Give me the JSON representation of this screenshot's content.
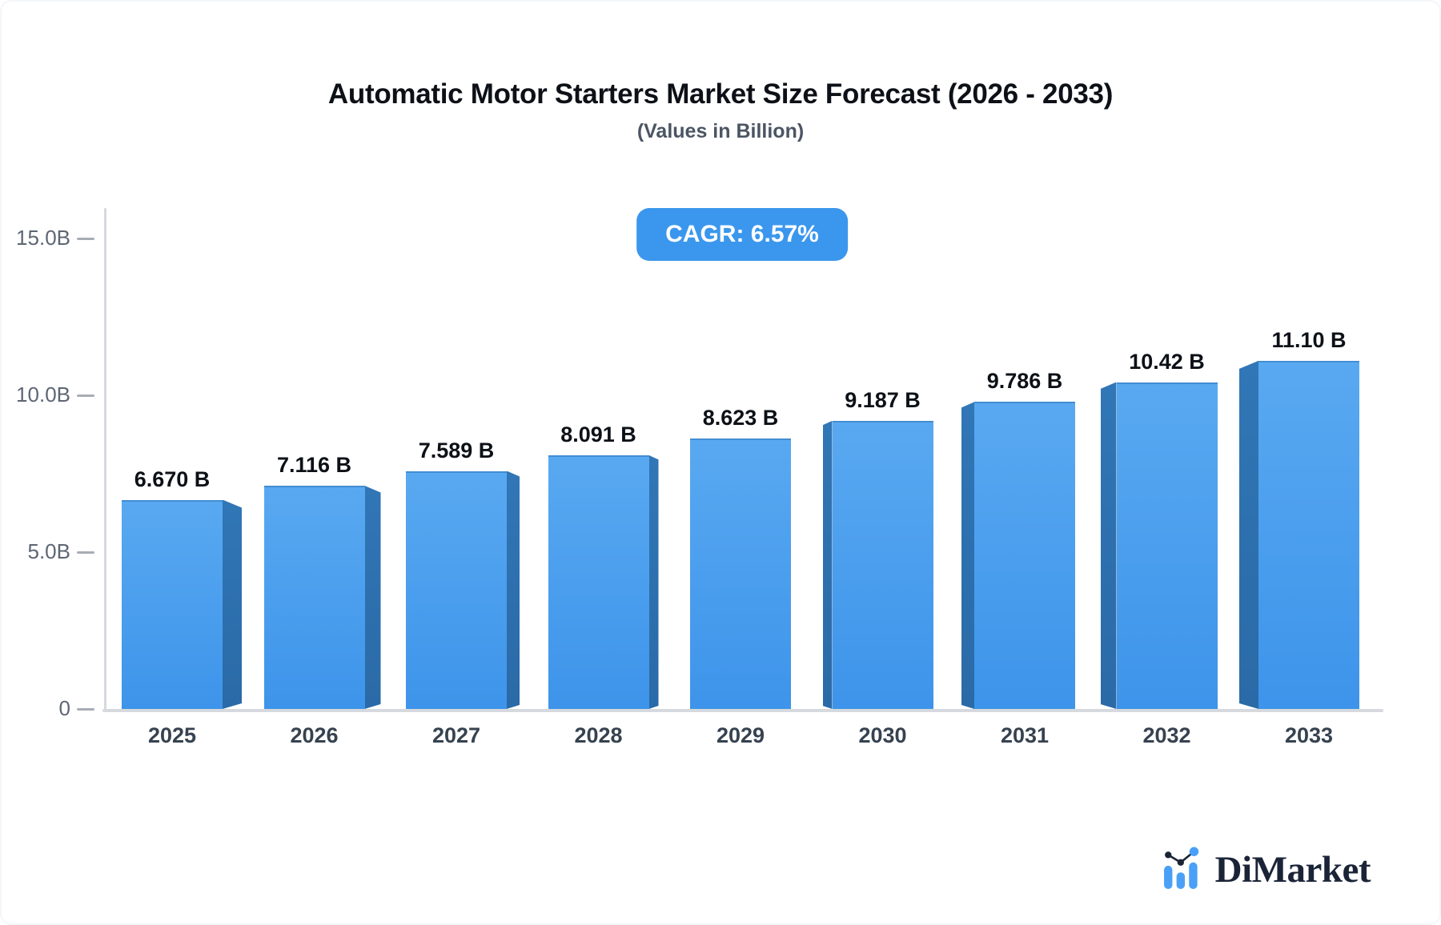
{
  "chart_data": {
    "type": "bar",
    "title": "Automatic Motor Starters Market Size Forecast (2026 - 2033)",
    "subtitle": "(Values in Billion)",
    "cagr_label": "CAGR: 6.57%",
    "categories": [
      "2025",
      "2026",
      "2027",
      "2028",
      "2029",
      "2030",
      "2031",
      "2032",
      "2033"
    ],
    "values": [
      6.67,
      7.116,
      7.589,
      8.091,
      8.623,
      9.187,
      9.786,
      10.42,
      11.1
    ],
    "value_labels": [
      "6.670 B",
      "7.116 B",
      "7.589 B",
      "8.091 B",
      "8.623 B",
      "9.187 B",
      "9.786 B",
      "10.42 B",
      "11.10 B"
    ],
    "xlabel": "",
    "ylabel": "",
    "ylim": [
      0,
      15
    ],
    "yticks": [
      {
        "value": 15,
        "label": "15.0B"
      },
      {
        "value": 10,
        "label": "10.0B"
      },
      {
        "value": 5,
        "label": "5.0B"
      },
      {
        "value": 0,
        "label": "0"
      }
    ],
    "grid": false,
    "legend_position": "none",
    "bar_style": "3d-perspective-toward-center"
  },
  "logo": {
    "text": "DiMarket",
    "icon": "bar-chart-logo-icon"
  },
  "colors": {
    "accent": "#3b97ed",
    "bar_face_top": "#59a9f1",
    "bar_face_bottom": "#3d94ea",
    "bar_side": "#2d70b0",
    "axis": "#d6d9dd",
    "tick_dash": "#a7adb5",
    "title": "#0d1117",
    "subtitle": "#4b5563",
    "y_label": "#5d6673",
    "x_label": "#36424f",
    "value_label": "#0d1117",
    "badge_text": "#ffffff",
    "logo_text": "#1b2437",
    "logo_icon_blue": "#4aa0f7",
    "logo_icon_navy": "#1b2437"
  }
}
